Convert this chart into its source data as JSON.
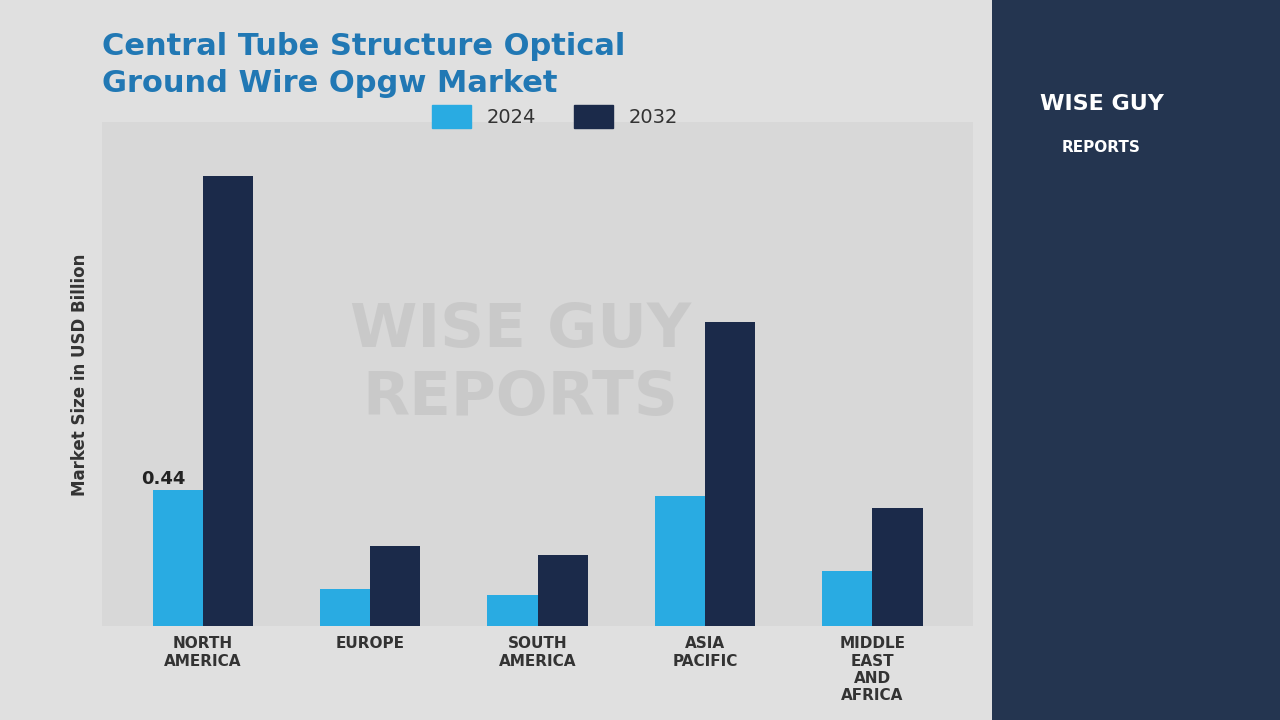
{
  "title": "Central Tube Structure Optical\nGround Wire Opgw Market",
  "ylabel": "Market Size in USD Billion",
  "categories": [
    "NORTH\nAMERICA",
    "EUROPE",
    "SOUTH\nAMERICA",
    "ASIA\nPACIFIC",
    "MIDDLE\nEAST\nAND\nAFRICA"
  ],
  "values_2024": [
    0.44,
    0.12,
    0.1,
    0.42,
    0.18
  ],
  "values_2032": [
    1.45,
    0.26,
    0.23,
    0.98,
    0.38
  ],
  "color_2024": "#29ABE2",
  "color_2032": "#1B2A4A",
  "annotation_label": "0.44",
  "annotation_index": 0,
  "bg_color": "#E0E0E0",
  "chart_bg_color": "#D8D8D8",
  "title_color": "#2178B4",
  "ylabel_color": "#333333",
  "xlabel_color": "#333333",
  "legend_labels": [
    "2024",
    "2032"
  ],
  "title_fontsize": 22,
  "label_fontsize": 11,
  "ylabel_fontsize": 12,
  "right_panel_color": "#1B2A4A",
  "watermark_color": "#B8B8B8",
  "watermark_alpha": 0.45
}
